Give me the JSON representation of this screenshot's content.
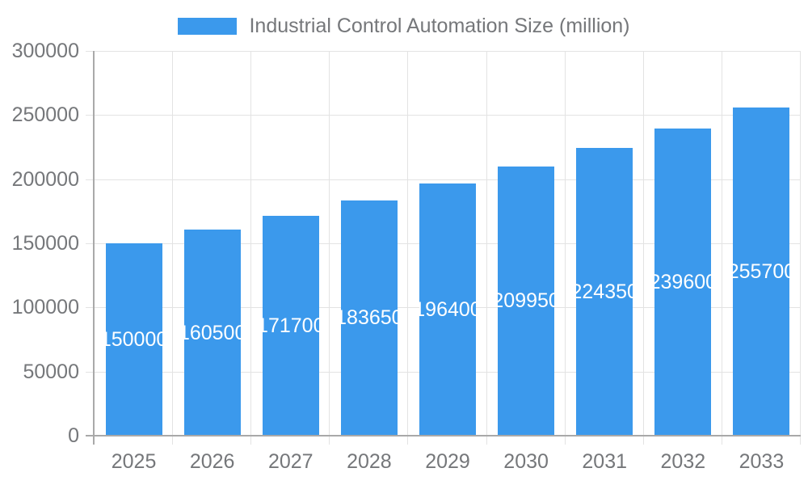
{
  "chart_data": {
    "type": "bar",
    "title": "Industrial Control Automation Size (million)",
    "legend_label": "Industrial Control Automation Size (million)",
    "legend_position": "top",
    "categories": [
      "2025",
      "2026",
      "2027",
      "2028",
      "2029",
      "2030",
      "2031",
      "2032",
      "2033"
    ],
    "values": [
      150000,
      160500,
      171700,
      183650,
      196400,
      209950,
      224350,
      239600,
      255700
    ],
    "value_labels": [
      "150000",
      "160500",
      "171700",
      "183650",
      "196400",
      "209950",
      "224350",
      "239600",
      "255700"
    ],
    "xlabel": "",
    "ylabel": "",
    "ylim": [
      0,
      300000
    ],
    "ytick_step": 50000,
    "yticks": [
      "0",
      "50000",
      "100000",
      "150000",
      "200000",
      "250000",
      "300000"
    ],
    "grid": true,
    "bar_color": "#3B99EC",
    "bar_label_color": "#FFFFFF",
    "text_color": "#75777A",
    "grid_color": "#E3E3E3",
    "axis_color": "#A9A9A9",
    "background_color": "#FFFFFF"
  }
}
